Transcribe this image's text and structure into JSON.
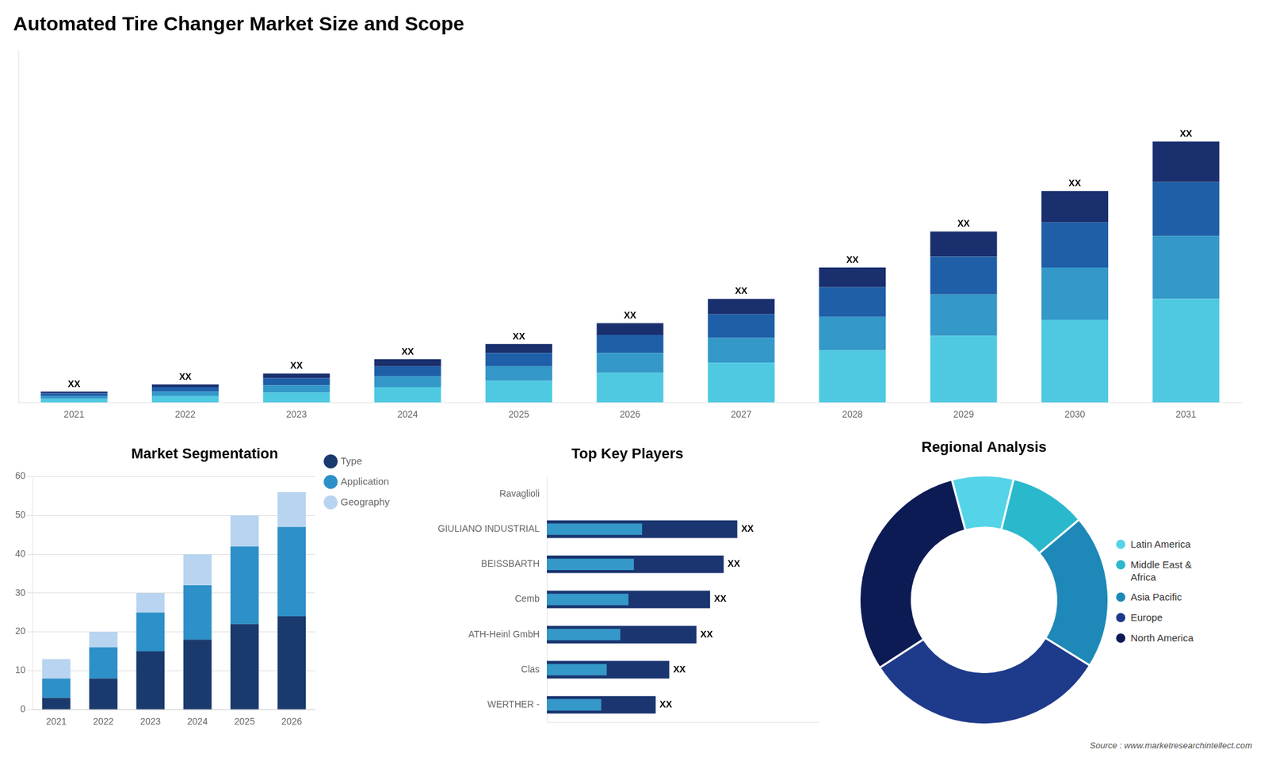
{
  "chart_data": [
    {
      "type": "bar",
      "title": "Automated Tire Changer Market Size and Scope",
      "stacked": true,
      "categories": [
        "2021",
        "2022",
        "2023",
        "2024",
        "2025",
        "2026",
        "2027",
        "2028",
        "2029",
        "2030",
        "2031"
      ],
      "series": [
        {
          "color": "#4ec9e1",
          "values": [
            0.4,
            0.7,
            1.1,
            1.7,
            2.4,
            3.3,
            4.4,
            5.8,
            7.4,
            9.2,
            11.5
          ]
        },
        {
          "color": "#3498c8",
          "values": [
            0.3,
            0.5,
            0.8,
            1.2,
            1.6,
            2.2,
            2.8,
            3.7,
            4.6,
            5.8,
            7.0
          ]
        },
        {
          "color": "#1e5fa8",
          "values": [
            0.3,
            0.5,
            0.8,
            1.1,
            1.5,
            2.0,
            2.6,
            3.3,
            4.2,
            5.0,
            6.0
          ]
        },
        {
          "color": "#1a2f6e",
          "values": [
            0.2,
            0.3,
            0.5,
            0.8,
            1.0,
            1.3,
            1.7,
            2.2,
            2.8,
            3.5,
            4.5
          ],
          "value_labels": [
            "XX",
            "XX",
            "XX",
            "XX",
            "XX",
            "XX",
            "XX",
            "XX",
            "XX",
            "XX",
            "XX"
          ]
        }
      ],
      "ylim": [
        0,
        39.15
      ],
      "grid": false,
      "tick_labels": "x"
    },
    {
      "type": "bar",
      "title": "Market Segmentation",
      "stacked": true,
      "categories": [
        "2021",
        "2022",
        "2023",
        "2024",
        "2025",
        "2026"
      ],
      "series": [
        {
          "name": "Type",
          "color": "#1a3a6e",
          "values": [
            3,
            8,
            15,
            18,
            22,
            24
          ]
        },
        {
          "name": "Application",
          "color": "#2e90c8",
          "values": [
            5,
            8,
            10,
            14,
            20,
            23
          ]
        },
        {
          "name": "Geography",
          "color": "#b8d4f0",
          "values": [
            5,
            4,
            5,
            8,
            8,
            9
          ]
        }
      ],
      "ylim": [
        0,
        60
      ],
      "yticks": [
        0,
        10,
        20,
        30,
        40,
        50,
        60
      ],
      "grid": true,
      "legend": "right"
    },
    {
      "type": "bar",
      "orientation": "horizontal",
      "title": "Top Key Players",
      "stacked": false,
      "categories": [
        "Ravaglioli",
        "GIULIANO INDUSTRIAL",
        "BEISSBARTH",
        "Cemb",
        "ATH-Heinl GmbH",
        "Clas",
        "WERTHER -"
      ],
      "series": [
        {
          "color": "#1a3570",
          "values": [
            0.0,
            7.0,
            6.5,
            6.0,
            5.5,
            4.5,
            4.0
          ],
          "value_labels": [
            null,
            "XX",
            "XX",
            "XX",
            "XX",
            "XX",
            "XX"
          ]
        },
        {
          "color": "#3498c8",
          "values": [
            0.0,
            3.5,
            3.2,
            3.0,
            2.7,
            2.2,
            2.0
          ]
        }
      ],
      "xlim": [
        0,
        10
      ],
      "grid": false,
      "tick_labels": "y"
    },
    {
      "type": "doughnut",
      "title": "Regional Analysis",
      "categories": [
        "Latin America",
        "Middle East &\nAfrica",
        "Asia Pacific",
        "Europe",
        "North America"
      ],
      "values": [
        8,
        10,
        20,
        32,
        30
      ],
      "colors": [
        "#55d4e8",
        "#2ab8cc",
        "#1e88b8",
        "#1e3a8a",
        "#0d1b55"
      ],
      "legend": "right",
      "annotations": [
        "Source : www.marketresearchintellect.com"
      ]
    }
  ]
}
